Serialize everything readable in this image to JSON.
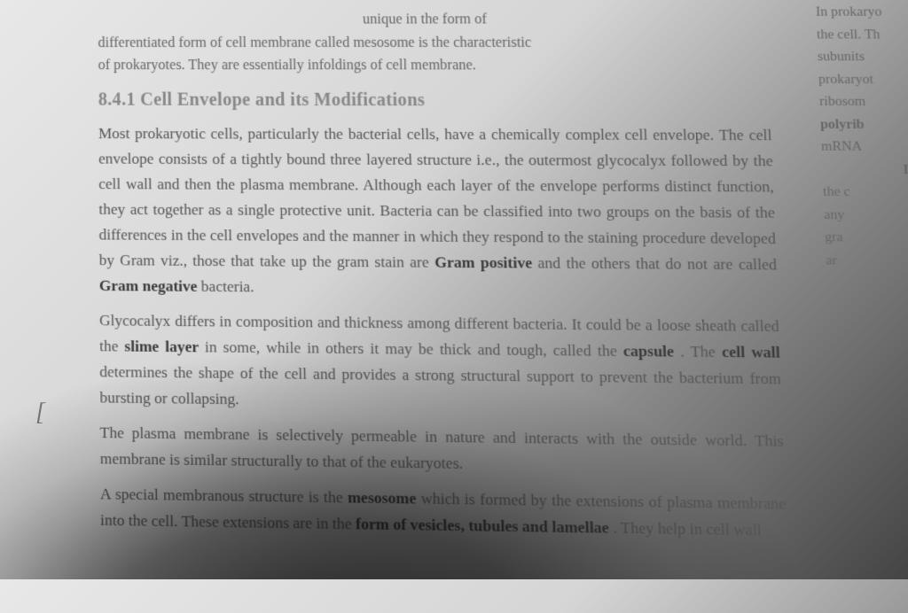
{
  "partialTop": {
    "line1": "unique in the form of",
    "line2": "differentiated form of cell membrane called mesosome is the characteristic",
    "line3": "of prokaryotes. They are essentially infoldings of cell membrane."
  },
  "heading": "8.4.1  Cell Envelope and its Modifications",
  "para1": {
    "t1": "Most prokaryotic cells, particularly the bacterial cells, have a chemically complex cell envelope. The cell envelope consists of a tightly bound three layered structure i.e., the outermost glycocalyx followed by the cell wall and then the plasma membrane. Although each layer of the envelope performs distinct function, they act together as a single protective unit. Bacteria can be classified into two groups on the basis of the differences in the cell envelopes and the manner in which they respond to the staining procedure developed by Gram viz., those that take up the gram stain are ",
    "b1": "Gram positive",
    "t2": " and the others that do not are called ",
    "b2": "Gram negative",
    "t3": " bacteria."
  },
  "para2": {
    "t1": "Glycocalyx differs in composition and thickness among different bacteria. It could be a loose sheath called the ",
    "b1": "slime layer",
    "t2": " in some, while in others it may be thick and tough, called the ",
    "b2": "capsule",
    "t3": ". The ",
    "b3": "cell wall",
    "t4": " determines the shape of the cell and provides a strong structural support to prevent the bacterium from bursting or collapsing."
  },
  "para3": {
    "t1": "The plasma membrane is selectively permeable in nature and interacts with the outside world. This membrane is similar structurally to that of the eukaryotes."
  },
  "para4": {
    "t1": "A special membranous structure is the ",
    "b1": "mesosome",
    "t2": " which is formed by the extensions of plasma membrane into the cell. These extensions are in the ",
    "b2": "form of vesicles, tubules and lamellae",
    "t3": ". They help in cell wall"
  },
  "rightCol": {
    "w1": "In prokaryo",
    "w2": "the cell. Th",
    "w3": "subunits",
    "w4": "prokaryot",
    "w5": "ribosom",
    "w6": "polyrib",
    "w7": "mRNA",
    "w8": "In",
    "w9": "the c",
    "w10": "any",
    "w11": "gra",
    "w12": "ar"
  },
  "marginMark": "["
}
